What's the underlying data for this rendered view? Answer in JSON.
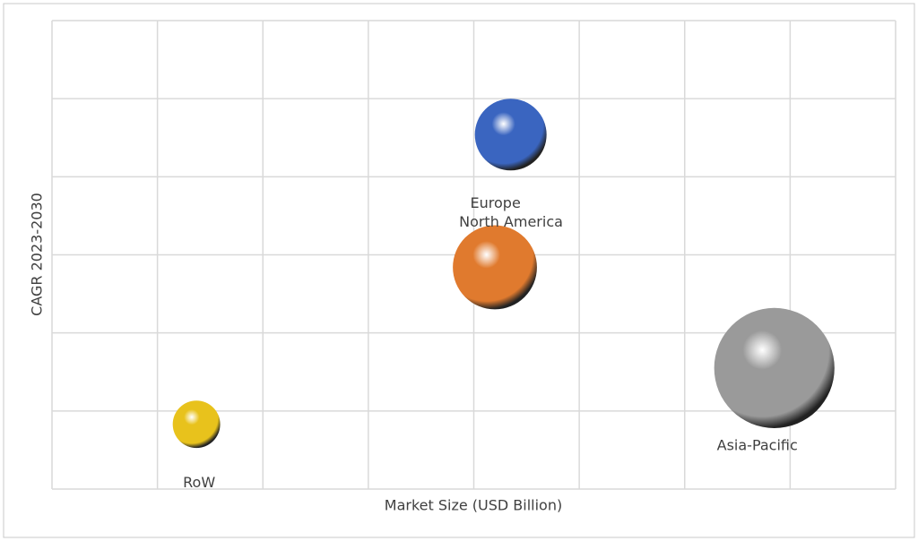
{
  "chart_data": {
    "type": "bubble",
    "x_label": "Market Size (USD Billion)",
    "y_label": "CAGR 2023-2030",
    "xlim": [
      0,
      8
    ],
    "ylim": [
      0,
      6
    ],
    "xticks": [
      0,
      1,
      2,
      3,
      4,
      5,
      6,
      7,
      8
    ],
    "yticks": [
      0,
      1,
      2,
      3,
      4,
      5,
      6
    ],
    "tick_labels": false,
    "grid": true,
    "series": [
      {
        "name": "Europe",
        "color": "#3a65c0",
        "x": [
          4.35
        ],
        "y": [
          4.54
        ],
        "size": [
          16
        ]
      },
      {
        "name": "North America",
        "color": "#e07a2e",
        "x": [
          4.2
        ],
        "y": [
          2.84
        ],
        "size": [
          22
        ]
      },
      {
        "name": "Asia-Pacific",
        "color": "#9a9a9a",
        "x": [
          6.85
        ],
        "y": [
          1.55
        ],
        "size": [
          45
        ]
      },
      {
        "name": "RoW",
        "color": "#e8c21c",
        "x": [
          1.37
        ],
        "y": [
          0.83
        ],
        "size": [
          7
        ]
      }
    ]
  }
}
